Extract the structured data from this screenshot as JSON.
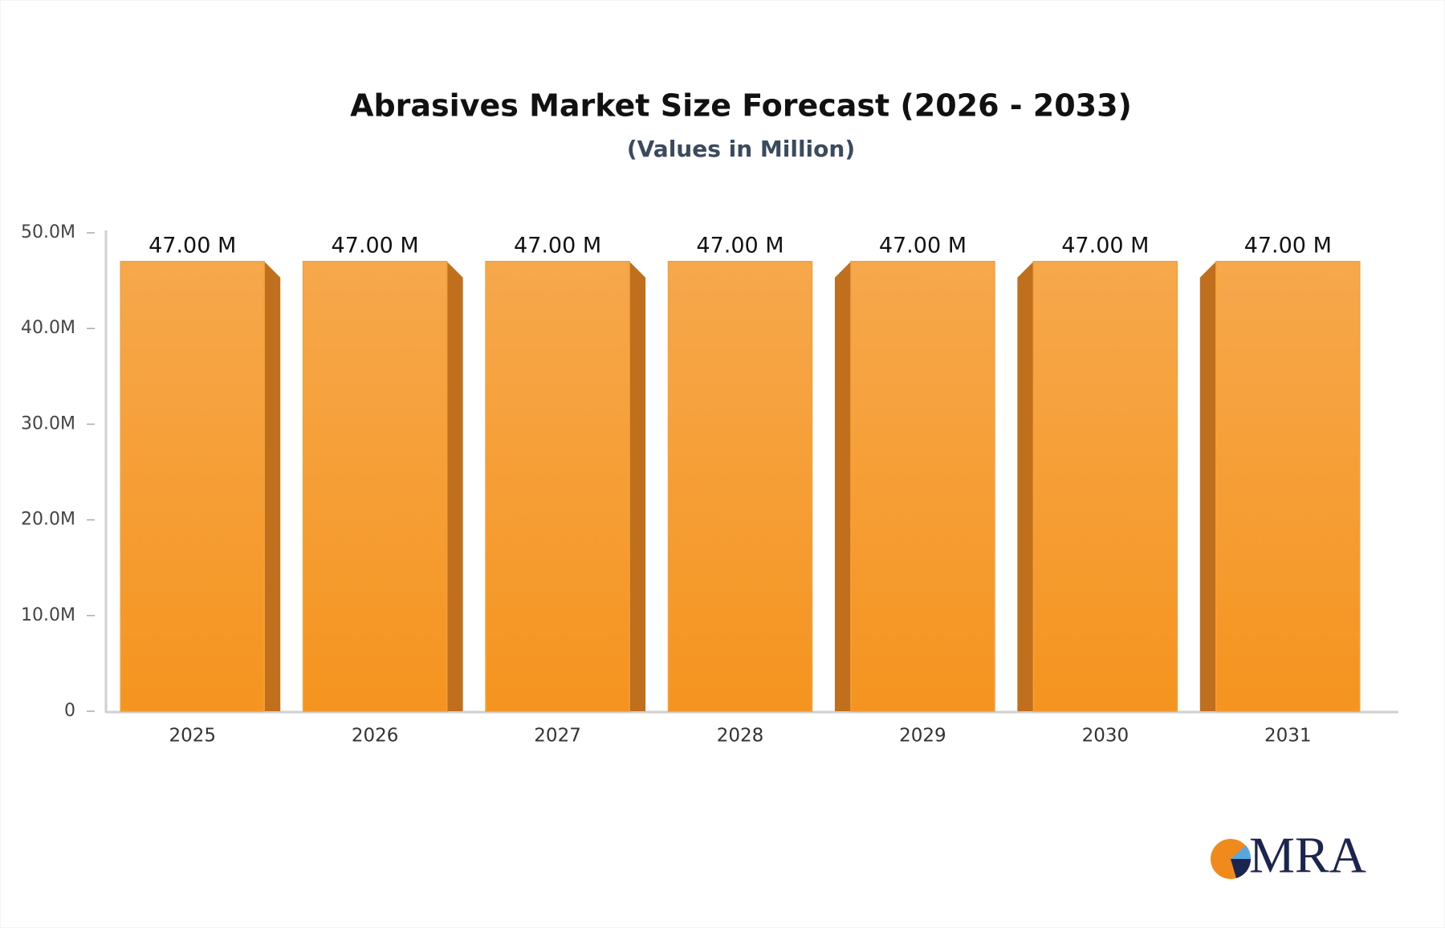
{
  "chart_data": {
    "type": "bar",
    "title": "Abrasives Market Size Forecast (2026 - 2033)",
    "subtitle": "(Values in Million)",
    "categories": [
      "2025",
      "2026",
      "2027",
      "2028",
      "2029",
      "2030",
      "2031"
    ],
    "values": [
      47,
      47,
      47,
      47,
      47,
      47,
      47
    ],
    "value_labels": [
      "47.00 M",
      "47.00 M",
      "47.00 M",
      "47.00 M",
      "47.00 M",
      "47.00 M",
      "47.00 M"
    ],
    "color": "#f5a03a",
    "ylim": [
      0,
      50
    ],
    "yticks": [
      0,
      {
        "value": 10,
        "label": "10.0M"
      },
      {
        "value": 20,
        "label": "20.0M"
      },
      {
        "value": 30,
        "label": "30.0M"
      },
      {
        "value": 40,
        "label": "40.0M"
      },
      {
        "value": 50,
        "label": "50.0M"
      }
    ],
    "grid": false
  },
  "logo": "MRA"
}
